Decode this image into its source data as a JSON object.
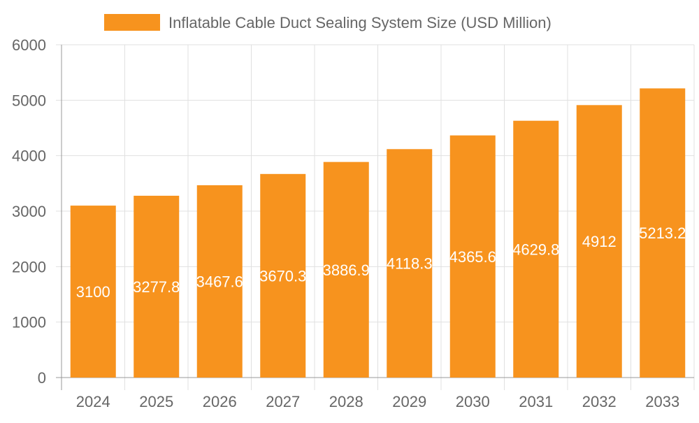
{
  "chart_data": {
    "type": "bar",
    "categories": [
      "2024",
      "2025",
      "2026",
      "2027",
      "2028",
      "2029",
      "2030",
      "2031",
      "2032",
      "2033"
    ],
    "series": [
      {
        "name": "Inflatable Cable Duct Sealing System Size (USD Million)",
        "values": [
          3100,
          3277.8,
          3467.6,
          3670.3,
          3886.9,
          4118.3,
          4365.6,
          4629.8,
          4912,
          5213.2
        ]
      }
    ],
    "ylim": [
      0,
      6000
    ],
    "yticks": [
      "0",
      "1000",
      "2000",
      "3000",
      "4000",
      "5000",
      "6000"
    ],
    "grid": true,
    "legend_position": "top",
    "data_labels": true,
    "colors": {
      "bar": "#f7931e",
      "label": "#ffffff",
      "grid": "#e0e0e0",
      "tick": "#666666"
    }
  }
}
